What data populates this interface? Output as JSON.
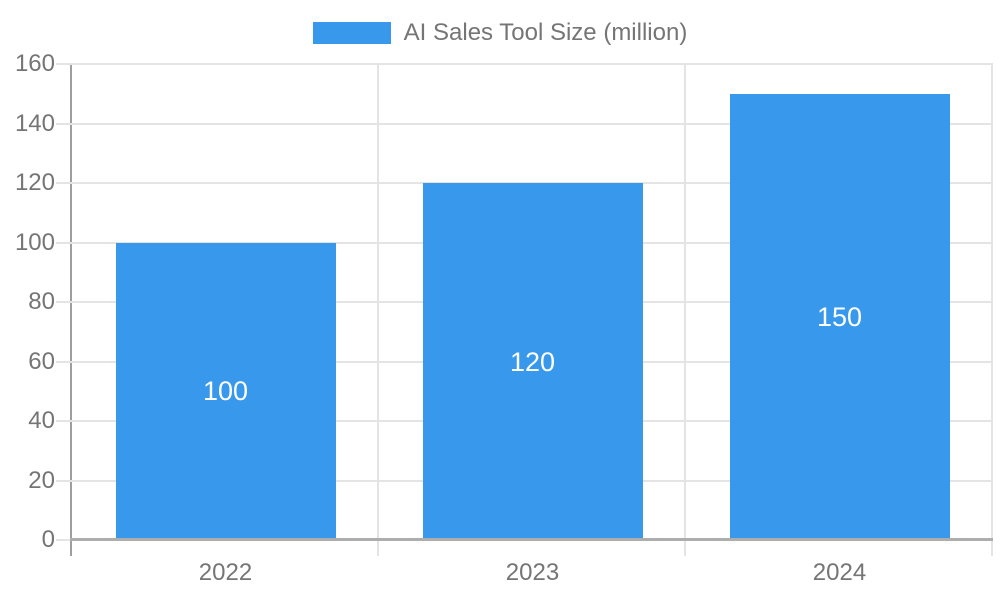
{
  "chart_data": {
    "type": "bar",
    "legend_label": "AI Sales Tool Size (million)",
    "legend_position": "top",
    "categories": [
      "2022",
      "2023",
      "2024"
    ],
    "series": [
      {
        "name": "AI Sales Tool Size (million)",
        "values": [
          100,
          120,
          150
        ]
      }
    ],
    "bar_value_labels": [
      "100",
      "120",
      "150"
    ],
    "title": "",
    "xlabel": "",
    "ylabel": "",
    "ylim": [
      0,
      160
    ],
    "yticks": [
      0,
      20,
      40,
      60,
      80,
      100,
      120,
      140,
      160
    ],
    "grid": true,
    "colors": {
      "bar": "#3898EC",
      "grid": "#E4E4E4",
      "axis": "#9E9E9E",
      "axis_bottom": "#ADADAD",
      "tick_text": "#757575",
      "bar_label_text": "#FFFFFF",
      "background": "#FFFFFF"
    }
  }
}
